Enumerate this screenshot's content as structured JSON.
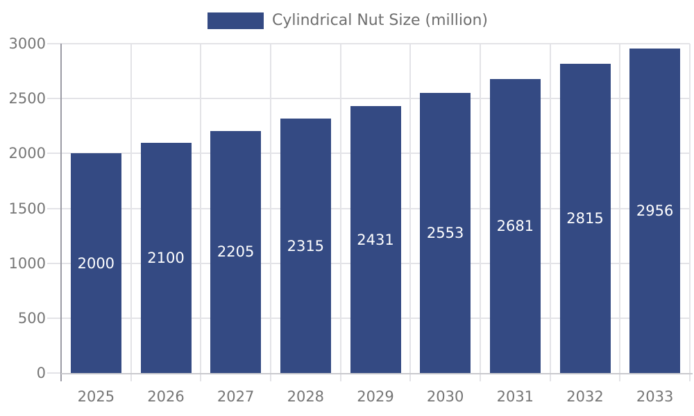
{
  "chart_data": {
    "type": "bar",
    "title": "Cylindrical Nut Size (million)",
    "legend": {
      "label": "Cylindrical Nut Size (million)",
      "position": "top"
    },
    "categories": [
      "2025",
      "2026",
      "2027",
      "2028",
      "2029",
      "2030",
      "2031",
      "2032",
      "2033"
    ],
    "series": [
      {
        "name": "Cylindrical Nut Size (million)",
        "values": [
          2000,
          2100,
          2205,
          2315,
          2431,
          2553,
          2681,
          2815,
          2956
        ]
      }
    ],
    "value_labels": [
      "2000",
      "2100",
      "2205",
      "2315",
      "2431",
      "2553",
      "2681",
      "2815",
      "2956"
    ],
    "xlabel": "",
    "ylabel": "",
    "ylim": [
      0,
      3000
    ],
    "yticks": [
      0,
      500,
      1000,
      1500,
      2000,
      2500,
      3000
    ],
    "grid": true,
    "colors": {
      "bar": "#344a83",
      "grid": "#e3e3e7",
      "axis_spine": "#9b9ba4",
      "baseline": "#c9c9cd",
      "tick_label": "#757575",
      "legend_text": "#6e6e6e",
      "value_label": "#ffffff",
      "background": "#ffffff"
    }
  }
}
